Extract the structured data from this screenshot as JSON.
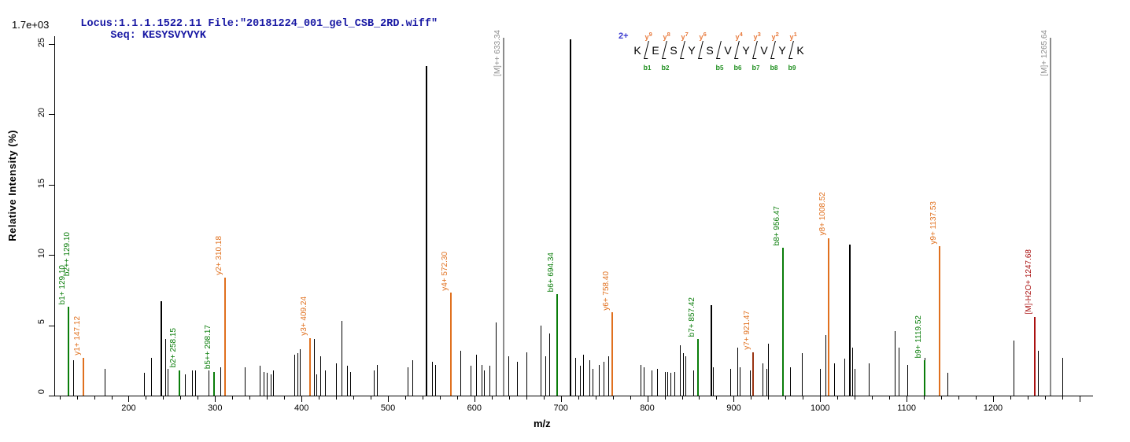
{
  "header": {
    "locus_file": "Locus:1.1.1.1522.11 File:\"20181224_001_gel_CSB_2RD.wiff\"",
    "seq_label": "Seq: KESYSVYVYK",
    "intensity_scale_max": "1.7e+03"
  },
  "axes": {
    "y_title": "Relative  Intensity (%)",
    "x_title": "m/z",
    "y_ticks": [
      0,
      5,
      10,
      15,
      20,
      25
    ],
    "x_labeled_ticks": [
      200,
      300,
      400,
      500,
      600,
      700,
      800,
      900,
      1000,
      1100,
      1200
    ],
    "x_minor_step": 20,
    "x_range": [
      114,
      1312
    ],
    "y_range_pct": [
      0,
      25
    ]
  },
  "annotation": {
    "charge": "2+",
    "residues": [
      "K",
      "E",
      "S",
      "Y",
      "S",
      "V",
      "Y",
      "V",
      "Y",
      "K"
    ],
    "boundaries": [
      {
        "y": "y9",
        "b": "b1"
      },
      {
        "y": "y8",
        "b": "b2"
      },
      {
        "y": "y7",
        "b": null
      },
      {
        "y": "y6",
        "b": null
      },
      {
        "y": null,
        "b": "b5"
      },
      {
        "y": "y4",
        "b": "b6"
      },
      {
        "y": "y3",
        "b": "b7"
      },
      {
        "y": "y2",
        "b": "b8"
      },
      {
        "y": "y1",
        "b": "b9"
      }
    ]
  },
  "colors": {
    "b_ion": "#0A7D0A",
    "y_ion": "#E0701E",
    "y7_line": "#993311",
    "neutral_loss": "#AA1111",
    "precursor_marker": "#8C8C8C",
    "peak": "#000000",
    "header_text": "#1717A3"
  },
  "chart_data": {
    "type": "bar",
    "title": "MS/MS fragmentation spectrum",
    "xlabel": "m/z",
    "ylabel": "Relative  Intensity (%)",
    "xlim": [
      114,
      1312
    ],
    "ylim": [
      0,
      25
    ],
    "intensity_scale_max": "1.7e+03",
    "labeled_peaks": [
      {
        "label": "b1+ 129.10",
        "mz": 129.1,
        "intensity_pct": 6.3,
        "ion": "b"
      },
      {
        "label": "b2++ 129.10",
        "mz": 134.5,
        "intensity_pct": 8.3,
        "ion": "b",
        "text_only": true
      },
      {
        "label": "y1+ 147.12",
        "mz": 147.12,
        "intensity_pct": 2.7,
        "ion": "y"
      },
      {
        "label": "b2+ 258.15",
        "mz": 258.15,
        "intensity_pct": 1.8,
        "ion": "b"
      },
      {
        "label": "b5++ 298.17",
        "mz": 298.17,
        "intensity_pct": 1.7,
        "ion": "b"
      },
      {
        "label": "y2+ 310.18",
        "mz": 310.18,
        "intensity_pct": 8.4,
        "ion": "y"
      },
      {
        "label": "y3+ 409.24",
        "mz": 409.24,
        "intensity_pct": 4.1,
        "ion": "y"
      },
      {
        "label": "y4+ 572.30",
        "mz": 572.3,
        "intensity_pct": 7.3,
        "ion": "y"
      },
      {
        "label": "b6+ 694.34",
        "mz": 694.34,
        "intensity_pct": 7.2,
        "ion": "b"
      },
      {
        "label": "y6+ 758.40",
        "mz": 758.4,
        "intensity_pct": 5.9,
        "ion": "y"
      },
      {
        "label": "b7+ 857.42",
        "mz": 857.42,
        "intensity_pct": 4.0,
        "ion": "b"
      },
      {
        "label": "y7+ 921.47",
        "mz": 921.47,
        "intensity_pct": 3.1,
        "ion": "y",
        "dark_line": true
      },
      {
        "label": "b8+ 956.47",
        "mz": 956.47,
        "intensity_pct": 10.5,
        "ion": "b"
      },
      {
        "label": "y8+ 1008.52",
        "mz": 1008.52,
        "intensity_pct": 11.2,
        "ion": "y"
      },
      {
        "label": "b9+ 1119.52",
        "mz": 1119.52,
        "intensity_pct": 2.5,
        "ion": "b"
      },
      {
        "label": "y9+ 1137.53",
        "mz": 1137.53,
        "intensity_pct": 10.6,
        "ion": "y"
      },
      {
        "label": "[M]-H2O+ 1247.68",
        "mz": 1247.68,
        "intensity_pct": 5.6,
        "ion": "loss"
      }
    ],
    "precursor_marker_lines": [
      {
        "label": "[M]++ 633.34",
        "mz": 633.34
      },
      {
        "label": "[M]+ 1265.64",
        "mz": 1265.64
      }
    ],
    "unlabeled_peaks": [
      [
        136,
        2.5
      ],
      [
        172,
        1.9
      ],
      [
        218,
        1.6
      ],
      [
        226,
        2.7
      ],
      [
        237,
        6.7
      ],
      [
        242,
        4.0
      ],
      [
        245,
        1.9
      ],
      [
        265,
        1.5
      ],
      [
        273,
        1.8
      ],
      [
        277,
        1.8
      ],
      [
        292,
        1.8
      ],
      [
        306,
        2.0
      ],
      [
        334,
        2.0
      ],
      [
        352,
        2.1
      ],
      [
        356,
        1.7
      ],
      [
        360,
        1.6
      ],
      [
        364,
        1.5
      ],
      [
        367,
        1.8
      ],
      [
        392,
        2.9
      ],
      [
        395,
        3.0
      ],
      [
        398,
        3.3
      ],
      [
        414,
        4.0
      ],
      [
        417,
        1.5
      ],
      [
        422,
        2.8
      ],
      [
        427,
        1.8
      ],
      [
        440,
        2.3
      ],
      [
        446,
        5.3
      ],
      [
        453,
        2.1
      ],
      [
        456,
        1.7
      ],
      [
        484,
        1.8
      ],
      [
        487,
        2.2
      ],
      [
        523,
        2.0
      ],
      [
        528,
        2.5
      ],
      [
        544,
        23.4
      ],
      [
        551,
        2.4
      ],
      [
        555,
        2.2
      ],
      [
        584,
        3.2
      ],
      [
        596,
        2.1
      ],
      [
        602,
        2.9
      ],
      [
        608,
        2.2
      ],
      [
        611,
        1.8
      ],
      [
        617,
        2.1
      ],
      [
        625,
        5.2
      ],
      [
        639,
        2.8
      ],
      [
        649,
        2.4
      ],
      [
        660,
        3.1
      ],
      [
        677,
        5.0
      ],
      [
        682,
        2.8
      ],
      [
        687,
        4.4
      ],
      [
        710,
        25.3
      ],
      [
        717,
        2.7
      ],
      [
        722,
        2.1
      ],
      [
        726,
        2.9
      ],
      [
        733,
        2.5
      ],
      [
        737,
        1.9
      ],
      [
        744,
        2.2
      ],
      [
        749,
        2.4
      ],
      [
        755,
        2.8
      ],
      [
        792,
        2.2
      ],
      [
        796,
        2.0
      ],
      [
        805,
        1.8
      ],
      [
        811,
        1.9
      ],
      [
        820,
        1.7
      ],
      [
        823,
        1.7
      ],
      [
        827,
        1.6
      ],
      [
        831,
        1.7
      ],
      [
        838,
        3.6
      ],
      [
        841,
        3.0
      ],
      [
        844,
        2.8
      ],
      [
        853,
        1.8
      ],
      [
        873,
        6.4
      ],
      [
        876,
        2.0
      ],
      [
        896,
        1.9
      ],
      [
        904,
        3.4
      ],
      [
        907,
        2.0
      ],
      [
        919,
        1.8
      ],
      [
        933,
        2.3
      ],
      [
        938,
        1.9
      ],
      [
        940,
        3.7
      ],
      [
        965,
        2.0
      ],
      [
        979,
        3.0
      ],
      [
        1000,
        1.9
      ],
      [
        1006,
        4.3
      ],
      [
        1016,
        2.3
      ],
      [
        1028,
        2.6
      ],
      [
        1033,
        10.7
      ],
      [
        1037,
        3.4
      ],
      [
        1040,
        1.9
      ],
      [
        1056,
        2.3
      ],
      [
        1086,
        4.6
      ],
      [
        1091,
        3.4
      ],
      [
        1101,
        2.2
      ],
      [
        1121,
        2.7
      ],
      [
        1147,
        1.6
      ],
      [
        1224,
        3.9
      ],
      [
        1252,
        3.2
      ],
      [
        1280,
        2.7
      ]
    ]
  }
}
